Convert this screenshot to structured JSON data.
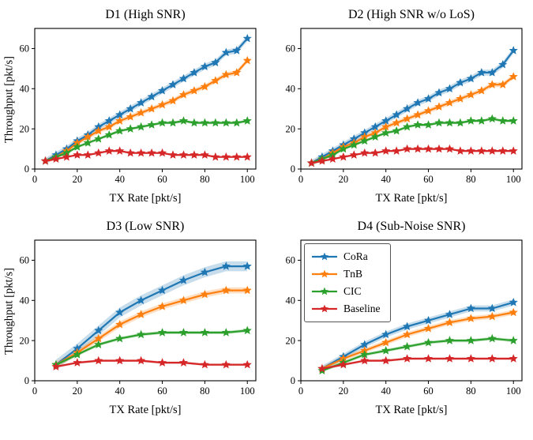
{
  "figure": {
    "background": "#ffffff",
    "axis_color": "#000000"
  },
  "legend": {
    "items": [
      {
        "label": "CoRa",
        "color": "#1f77b4"
      },
      {
        "label": "TnB",
        "color": "#ff7f0e"
      },
      {
        "label": "CIC",
        "color": "#2ca02c"
      },
      {
        "label": "Baseline",
        "color": "#d62728"
      }
    ]
  },
  "chart_data": [
    {
      "type": "line",
      "title": "D1 (High SNR)",
      "xlabel": "TX Rate [pkt/s]",
      "ylabel": "Throughput [pkt/s]",
      "xlim": [
        0,
        104
      ],
      "ylim": [
        0,
        70
      ],
      "xticks": [
        0,
        20,
        40,
        60,
        80,
        100
      ],
      "yticks": [
        0,
        20,
        40,
        60
      ],
      "x": [
        5,
        10,
        15,
        20,
        25,
        30,
        35,
        40,
        45,
        50,
        55,
        60,
        65,
        70,
        75,
        80,
        85,
        90,
        95,
        100
      ],
      "series": [
        {
          "name": "CoRa",
          "color": "#1f77b4",
          "band": 1.5,
          "values": [
            4,
            7,
            10,
            14,
            17,
            21,
            24,
            27,
            30,
            33,
            36,
            39,
            42,
            45,
            48,
            51,
            53,
            58,
            59,
            65
          ]
        },
        {
          "name": "TnB",
          "color": "#ff7f0e",
          "band": 1.2,
          "values": [
            4,
            6,
            9,
            13,
            16,
            19,
            21,
            24,
            26,
            28,
            30,
            32,
            34,
            37,
            39,
            41,
            44,
            47,
            48,
            54
          ]
        },
        {
          "name": "CIC",
          "color": "#2ca02c",
          "band": 0.7,
          "values": [
            4,
            6,
            8,
            11,
            13,
            15,
            17,
            19,
            20,
            21,
            22,
            23,
            23,
            24,
            23,
            23,
            23,
            23,
            23,
            24
          ]
        },
        {
          "name": "Baseline",
          "color": "#d62728",
          "band": 0.5,
          "values": [
            4,
            5,
            6,
            7,
            7,
            8,
            9,
            9,
            8,
            8,
            8,
            8,
            7,
            7,
            7,
            7,
            6,
            6,
            6,
            6
          ]
        }
      ]
    },
    {
      "type": "line",
      "title": "D2 (High SNR w/o LoS)",
      "xlabel": "TX Rate [pkt/s]",
      "xlim": [
        0,
        104
      ],
      "ylim": [
        0,
        70
      ],
      "xticks": [
        0,
        20,
        40,
        60,
        80,
        100
      ],
      "yticks": [
        0,
        20,
        40,
        60
      ],
      "x": [
        5,
        10,
        15,
        20,
        25,
        30,
        35,
        40,
        45,
        50,
        55,
        60,
        65,
        70,
        75,
        80,
        85,
        90,
        95,
        100
      ],
      "series": [
        {
          "name": "CoRa",
          "color": "#1f77b4",
          "band": 1.5,
          "values": [
            3,
            6,
            9,
            12,
            15,
            18,
            21,
            24,
            27,
            30,
            33,
            35,
            38,
            40,
            43,
            45,
            48,
            48,
            52,
            59
          ]
        },
        {
          "name": "TnB",
          "color": "#ff7f0e",
          "band": 1.2,
          "values": [
            3,
            5,
            8,
            11,
            13,
            16,
            18,
            21,
            23,
            25,
            27,
            29,
            31,
            33,
            35,
            37,
            39,
            42,
            42,
            46
          ]
        },
        {
          "name": "CIC",
          "color": "#2ca02c",
          "band": 0.7,
          "values": [
            3,
            5,
            7,
            10,
            12,
            14,
            16,
            18,
            19,
            21,
            22,
            22,
            23,
            23,
            23,
            24,
            24,
            25,
            24,
            24
          ]
        },
        {
          "name": "Baseline",
          "color": "#d62728",
          "band": 0.5,
          "values": [
            3,
            4,
            5,
            6,
            7,
            8,
            8,
            9,
            9,
            10,
            10,
            10,
            10,
            10,
            9,
            9,
            9,
            9,
            9,
            9
          ]
        }
      ]
    },
    {
      "type": "line",
      "title": "D3 (Low SNR)",
      "xlabel": "TX Rate [pkt/s]",
      "ylabel": "Throughput [pkt/s]",
      "xlim": [
        0,
        104
      ],
      "ylim": [
        0,
        70
      ],
      "xticks": [
        0,
        20,
        40,
        60,
        80,
        100
      ],
      "yticks": [
        0,
        20,
        40,
        60
      ],
      "x": [
        10,
        20,
        30,
        40,
        50,
        60,
        70,
        80,
        90,
        100
      ],
      "series": [
        {
          "name": "CoRa",
          "color": "#1f77b4",
          "band": 2.5,
          "values": [
            8,
            16,
            25,
            34,
            40,
            45,
            50,
            54,
            57,
            57
          ]
        },
        {
          "name": "TnB",
          "color": "#ff7f0e",
          "band": 1.5,
          "values": [
            8,
            14,
            21,
            28,
            33,
            37,
            40,
            43,
            45,
            45
          ]
        },
        {
          "name": "CIC",
          "color": "#2ca02c",
          "band": 0.8,
          "values": [
            8,
            13,
            18,
            21,
            23,
            24,
            24,
            24,
            24,
            25
          ]
        },
        {
          "name": "Baseline",
          "color": "#d62728",
          "band": 0.6,
          "values": [
            7,
            9,
            10,
            10,
            10,
            9,
            9,
            8,
            8,
            8
          ]
        }
      ]
    },
    {
      "type": "line",
      "title": "D4 (Sub-Noise SNR)",
      "xlabel": "TX Rate [pkt/s]",
      "xlim": [
        0,
        104
      ],
      "ylim": [
        0,
        70
      ],
      "xticks": [
        0,
        20,
        40,
        60,
        80,
        100
      ],
      "yticks": [
        0,
        20,
        40,
        60
      ],
      "x": [
        10,
        20,
        30,
        40,
        50,
        60,
        70,
        80,
        90,
        100
      ],
      "series": [
        {
          "name": "CoRa",
          "color": "#1f77b4",
          "band": 1.5,
          "values": [
            6,
            12,
            18,
            23,
            27,
            30,
            33,
            36,
            36,
            39
          ]
        },
        {
          "name": "TnB",
          "color": "#ff7f0e",
          "band": 1.2,
          "values": [
            6,
            11,
            15,
            19,
            23,
            26,
            29,
            31,
            32,
            34
          ]
        },
        {
          "name": "CIC",
          "color": "#2ca02c",
          "band": 0.8,
          "values": [
            5,
            9,
            13,
            15,
            17,
            19,
            20,
            20,
            21,
            20
          ]
        },
        {
          "name": "Baseline",
          "color": "#d62728",
          "band": 0.6,
          "values": [
            6,
            8,
            10,
            10,
            11,
            11,
            11,
            11,
            11,
            11
          ]
        }
      ]
    }
  ]
}
